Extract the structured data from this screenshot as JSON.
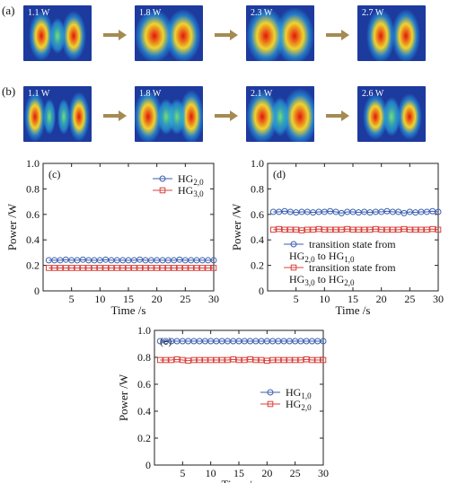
{
  "heatmaps": {
    "row_a": {
      "label": "(a)",
      "powers": [
        "1.1 W",
        "1.8 W",
        "2.3 W",
        "2.7 W"
      ]
    },
    "row_b": {
      "label": "(b)",
      "powers": [
        "1.1 W",
        "1.8 W",
        "2.1 W",
        "2.6 W"
      ]
    }
  },
  "colors": {
    "hg_main": "#3b5fae",
    "hg_second": "#d9413b",
    "arrow": "#a58a52",
    "heat_bg": "#1d3a9e"
  },
  "chart_data": [
    {
      "id": "c",
      "type": "scatter",
      "panel_label": "(c)",
      "xlabel": "Time /s",
      "ylabel": "Power /W",
      "xlim": [
        0,
        30
      ],
      "ylim": [
        0,
        1.0
      ],
      "xticks": [
        5,
        10,
        15,
        20,
        25,
        30
      ],
      "yticks": [
        0,
        0.2,
        0.4,
        0.6,
        0.8,
        1.0
      ],
      "legend_placement": "top-right",
      "series": [
        {
          "name": "HG2,0",
          "legend_main": "HG",
          "legend_sub": "2,0",
          "marker": "circle",
          "color": "#3b5fae",
          "x": [
            1,
            2,
            3,
            4,
            5,
            6,
            7,
            8,
            9,
            10,
            11,
            12,
            13,
            14,
            15,
            16,
            17,
            18,
            19,
            20,
            21,
            22,
            23,
            24,
            25,
            26,
            27,
            28,
            29,
            30
          ],
          "values": [
            0.24,
            0.24,
            0.24,
            0.245,
            0.24,
            0.24,
            0.245,
            0.24,
            0.24,
            0.24,
            0.245,
            0.24,
            0.24,
            0.24,
            0.24,
            0.24,
            0.245,
            0.24,
            0.24,
            0.24,
            0.24,
            0.24,
            0.24,
            0.245,
            0.24,
            0.24,
            0.24,
            0.24,
            0.24,
            0.24
          ]
        },
        {
          "name": "HG3,0",
          "legend_main": "HG",
          "legend_sub": "3,0",
          "marker": "square",
          "color": "#d9413b",
          "x": [
            1,
            2,
            3,
            4,
            5,
            6,
            7,
            8,
            9,
            10,
            11,
            12,
            13,
            14,
            15,
            16,
            17,
            18,
            19,
            20,
            21,
            22,
            23,
            24,
            25,
            26,
            27,
            28,
            29,
            30
          ],
          "values": [
            0.18,
            0.18,
            0.18,
            0.18,
            0.18,
            0.18,
            0.18,
            0.18,
            0.18,
            0.18,
            0.18,
            0.18,
            0.18,
            0.18,
            0.18,
            0.18,
            0.18,
            0.18,
            0.18,
            0.18,
            0.18,
            0.18,
            0.18,
            0.18,
            0.18,
            0.18,
            0.18,
            0.18,
            0.18,
            0.18
          ]
        }
      ]
    },
    {
      "id": "d",
      "type": "scatter",
      "panel_label": "(d)",
      "xlabel": "Time /s",
      "ylabel": "Power /W",
      "xlim": [
        0,
        30
      ],
      "ylim": [
        0,
        1.0
      ],
      "xticks": [
        5,
        10,
        15,
        20,
        25,
        30
      ],
      "yticks": [
        0,
        0.2,
        0.4,
        0.6,
        0.8,
        1.0
      ],
      "legend_placement": "bottom-right",
      "series": [
        {
          "name": "transition state from HG2,0 to HG1,0",
          "legend_line1": "transition state from",
          "legend_line2_a": "HG",
          "legend_line2_a_sub": "2,0",
          "legend_line2_mid": " to HG",
          "legend_line2_b_sub": "1,0",
          "marker": "circle",
          "color": "#3b5fae",
          "x": [
            1,
            2,
            3,
            4,
            5,
            6,
            7,
            8,
            9,
            10,
            11,
            12,
            13,
            14,
            15,
            16,
            17,
            18,
            19,
            20,
            21,
            22,
            23,
            24,
            25,
            26,
            27,
            28,
            29,
            30
          ],
          "values": [
            0.62,
            0.62,
            0.625,
            0.62,
            0.615,
            0.62,
            0.62,
            0.615,
            0.62,
            0.62,
            0.625,
            0.62,
            0.61,
            0.62,
            0.62,
            0.615,
            0.62,
            0.615,
            0.62,
            0.62,
            0.625,
            0.62,
            0.62,
            0.61,
            0.62,
            0.615,
            0.62,
            0.62,
            0.625,
            0.62
          ]
        },
        {
          "name": "transition state from HG3,0 to HG2,0",
          "legend_line1": "transition state from",
          "legend_line2_a": "HG",
          "legend_line2_a_sub": "3,0",
          "legend_line2_mid": " to HG",
          "legend_line2_b_sub": "2,0",
          "marker": "square",
          "color": "#d9413b",
          "x": [
            1,
            2,
            3,
            4,
            5,
            6,
            7,
            8,
            9,
            10,
            11,
            12,
            13,
            14,
            15,
            16,
            17,
            18,
            19,
            20,
            21,
            22,
            23,
            24,
            25,
            26,
            27,
            28,
            29,
            30
          ],
          "values": [
            0.48,
            0.485,
            0.48,
            0.48,
            0.48,
            0.475,
            0.48,
            0.48,
            0.485,
            0.48,
            0.48,
            0.48,
            0.48,
            0.485,
            0.48,
            0.48,
            0.48,
            0.48,
            0.485,
            0.48,
            0.48,
            0.48,
            0.48,
            0.485,
            0.48,
            0.48,
            0.48,
            0.48,
            0.485,
            0.48
          ]
        }
      ]
    },
    {
      "id": "e",
      "type": "scatter",
      "panel_label": "(e)",
      "xlabel": "Time /s",
      "ylabel": "Power /W",
      "xlim": [
        0,
        30
      ],
      "ylim": [
        0,
        1.0
      ],
      "xticks": [
        5,
        10,
        15,
        20,
        25,
        30
      ],
      "yticks": [
        0,
        0.2,
        0.4,
        0.6,
        0.8,
        1.0
      ],
      "legend_placement": "center-right",
      "series": [
        {
          "name": "HG1,0",
          "legend_main": "HG",
          "legend_sub": "1,0",
          "marker": "circle",
          "color": "#3b5fae",
          "x": [
            1,
            2,
            3,
            4,
            5,
            6,
            7,
            8,
            9,
            10,
            11,
            12,
            13,
            14,
            15,
            16,
            17,
            18,
            19,
            20,
            21,
            22,
            23,
            24,
            25,
            26,
            27,
            28,
            29,
            30
          ],
          "values": [
            0.92,
            0.92,
            0.92,
            0.92,
            0.92,
            0.92,
            0.92,
            0.92,
            0.92,
            0.92,
            0.92,
            0.92,
            0.92,
            0.92,
            0.92,
            0.92,
            0.92,
            0.92,
            0.92,
            0.92,
            0.92,
            0.92,
            0.92,
            0.92,
            0.92,
            0.92,
            0.92,
            0.92,
            0.92,
            0.92
          ]
        },
        {
          "name": "HG2,0",
          "legend_main": "HG",
          "legend_sub": "2,0",
          "marker": "square",
          "color": "#d9413b",
          "x": [
            1,
            2,
            3,
            4,
            5,
            6,
            7,
            8,
            9,
            10,
            11,
            12,
            13,
            14,
            15,
            16,
            17,
            18,
            19,
            20,
            21,
            22,
            23,
            24,
            25,
            26,
            27,
            28,
            29,
            30
          ],
          "values": [
            0.78,
            0.78,
            0.78,
            0.785,
            0.78,
            0.775,
            0.78,
            0.78,
            0.78,
            0.78,
            0.78,
            0.78,
            0.78,
            0.785,
            0.78,
            0.78,
            0.785,
            0.78,
            0.78,
            0.775,
            0.78,
            0.78,
            0.78,
            0.78,
            0.78,
            0.78,
            0.785,
            0.78,
            0.78,
            0.78
          ]
        }
      ]
    }
  ]
}
